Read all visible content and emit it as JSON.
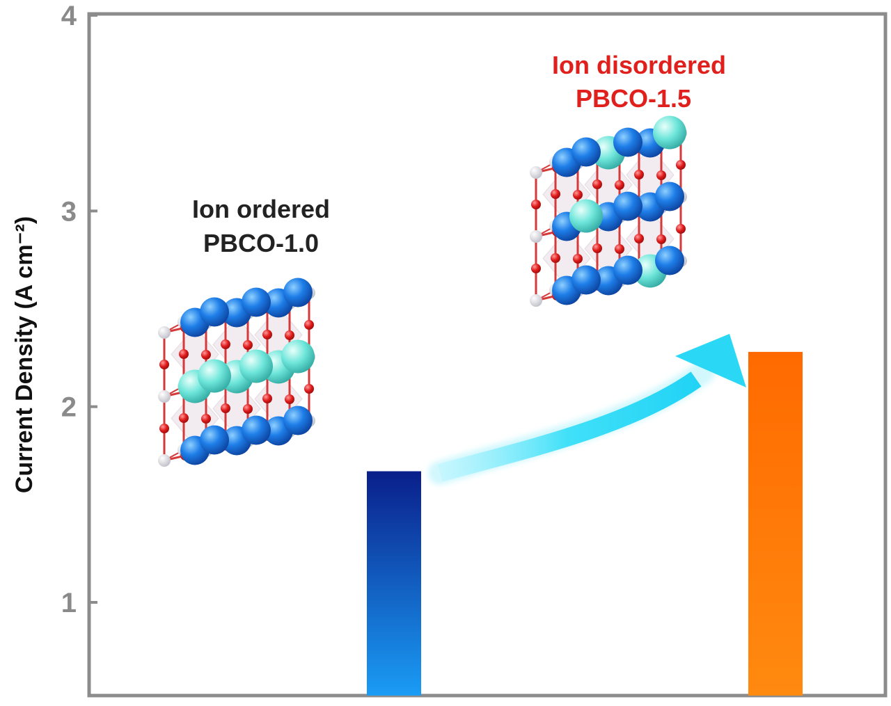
{
  "chart_data": {
    "type": "bar",
    "categories": [
      "PBCO-1.0",
      "PBCO-1.5"
    ],
    "values": [
      1.67,
      2.28
    ],
    "ylim": [
      0.5,
      4
    ],
    "yticks": [
      1,
      2,
      3,
      4
    ],
    "xlabel": "",
    "ylabel": "Current Density (A cm⁻²)",
    "bar_colors": [
      [
        "#0a1f8a",
        "#1a9cf5"
      ],
      [
        "#ff6a00",
        "#ff8a10"
      ]
    ],
    "grid": false,
    "annotations": [
      {
        "lines": [
          "Ion ordered",
          "PBCO-1.0"
        ],
        "color": "#222222",
        "structure": "ordered"
      },
      {
        "lines": [
          "Ion disordered",
          "PBCO-1.5"
        ],
        "color": "#e0201c",
        "structure": "disordered"
      }
    ]
  },
  "colors": {
    "axis": "#8c8c8c",
    "arrow": "#30dcf8",
    "a_site_blue": "#1565d8",
    "a_site_cyan": "#5fe3d6",
    "oxygen": "#e01b1b",
    "b_site": "#d8d8e0"
  }
}
